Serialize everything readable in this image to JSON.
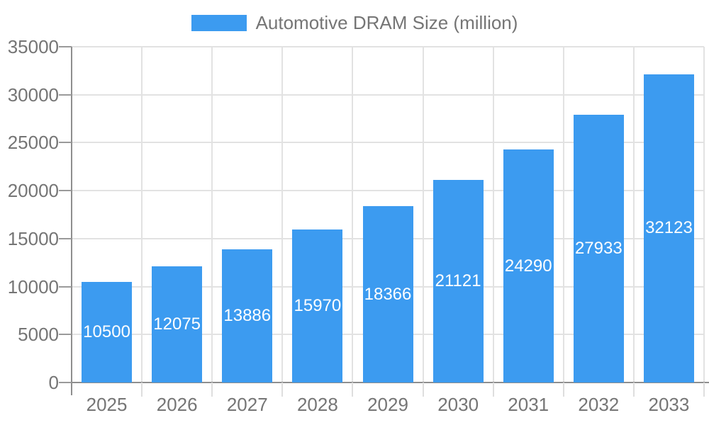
{
  "legend": {
    "label": "Automotive DRAM Size (million)"
  },
  "colors": {
    "bar": "#3C9BF0",
    "grid": "#E2E2E2",
    "axis": "#8E8E8E",
    "ytick": "#9A9A9A",
    "xtick": "#DEDEDE",
    "axis_text": "#757575",
    "value_text": "#FFFFFF"
  },
  "chart_data": {
    "type": "bar",
    "title": "Automotive DRAM Size (million)",
    "categories": [
      "2025",
      "2026",
      "2027",
      "2028",
      "2029",
      "2030",
      "2031",
      "2032",
      "2033"
    ],
    "series": [
      {
        "name": "Automotive DRAM Size (million)",
        "values": [
          10500,
          12075,
          13886,
          15970,
          18366,
          21121,
          24290,
          27933,
          32123
        ]
      }
    ],
    "value_labels_shown": true,
    "value_label_position": "inside-center",
    "xlabel": "",
    "ylabel": "",
    "ylim": [
      0,
      35000
    ],
    "yticks": [
      0,
      5000,
      10000,
      15000,
      20000,
      25000,
      30000,
      35000
    ],
    "grid": true,
    "legend_position": "top-center"
  }
}
